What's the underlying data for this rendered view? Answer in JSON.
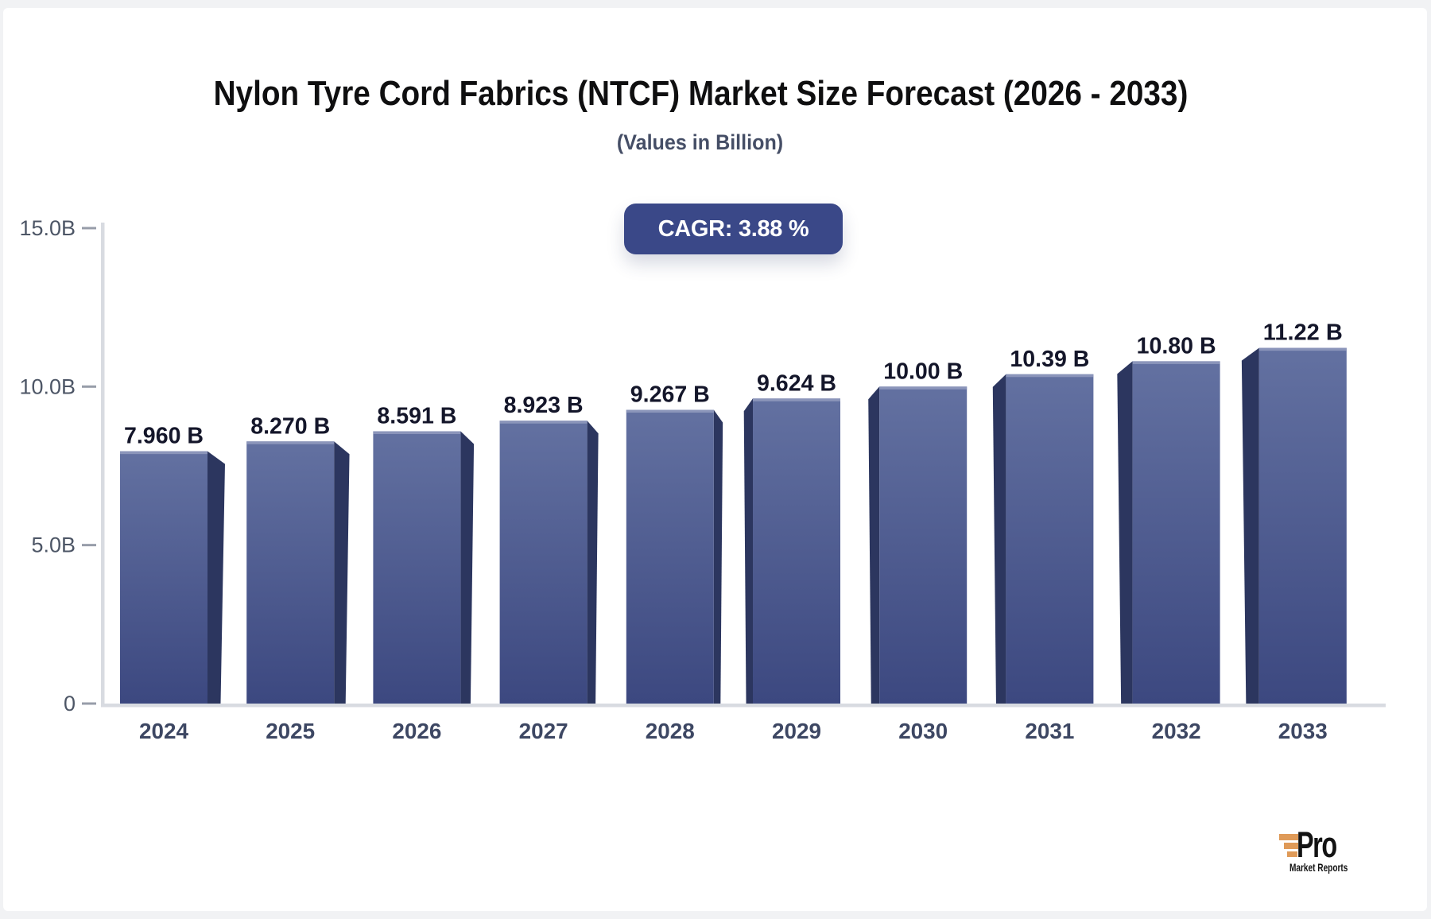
{
  "header": {
    "title": "Nylon Tyre Cord Fabrics (NTCF) Market Size Forecast (2026 - 2033)",
    "subtitle": "(Values in Billion)",
    "cagr_label": "CAGR: 3.88 %"
  },
  "chart_data": {
    "type": "bar",
    "title": "Nylon Tyre Cord Fabrics (NTCF) Market Size Forecast (2026 - 2033)",
    "subtitle": "(Values in Billion)",
    "unit": "Billion",
    "cagr_percent": 3.88,
    "categories": [
      "2024",
      "2025",
      "2026",
      "2027",
      "2028",
      "2029",
      "2030",
      "2031",
      "2032",
      "2033"
    ],
    "values": [
      7.96,
      8.27,
      8.591,
      8.923,
      9.267,
      9.624,
      10.0,
      10.39,
      10.8,
      11.22
    ],
    "value_labels": [
      "7.960 B",
      "8.270 B",
      "8.591 B",
      "8.923 B",
      "9.267 B",
      "9.624 B",
      "10.00 B",
      "10.39 B",
      "10.80 B",
      "11.22 B"
    ],
    "ylim": [
      0,
      15
    ],
    "ytick_values": [
      15,
      10,
      5,
      0
    ],
    "ytick_labels": [
      "15.0B",
      "10.0B",
      "5.0B",
      "0"
    ],
    "grid": false,
    "legend": false,
    "bar_style": "3d"
  },
  "branding": {
    "logo_text": "Pro",
    "logo_tagline": "Market Reports"
  },
  "colors": {
    "background": "#f1f2f4",
    "card": "#ffffff",
    "bar_face_top": "#6371a1",
    "bar_face_bottom": "#3c4880",
    "bar_side": "#2c365f",
    "bar_top_edge": "#8b95ba",
    "badge_bg": "#3a4888",
    "badge_text": "#ffffff",
    "axis_line": "#d8dbe1",
    "tick": "#979da9",
    "tick_label": "#4d5666",
    "x_label": "#3d4763",
    "value_label": "#14162a",
    "title": "#0f0f10",
    "subtitle": "#454e66",
    "logo_orange": "#df9a58"
  }
}
